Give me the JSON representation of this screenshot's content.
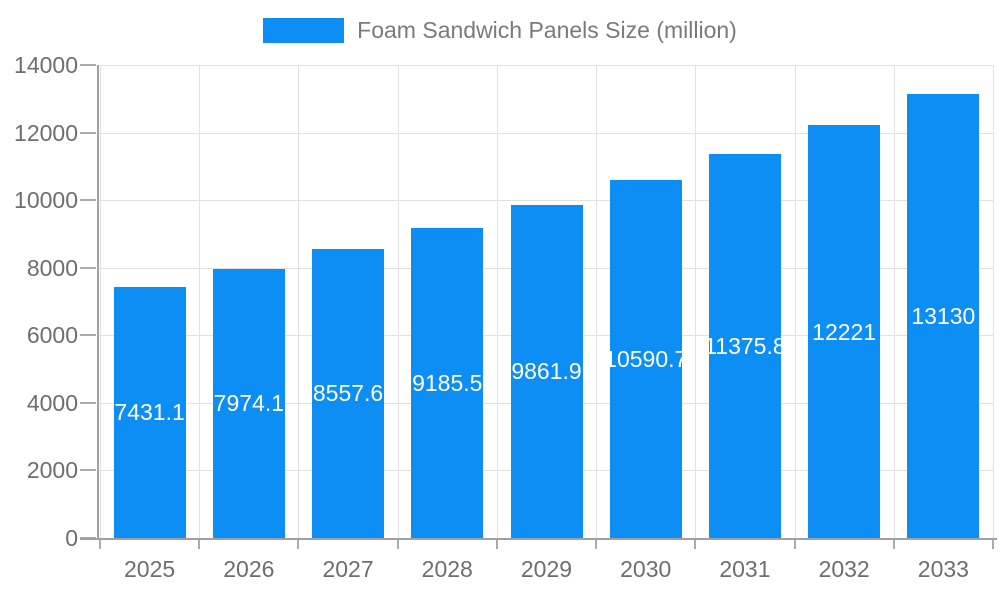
{
  "chart_data": {
    "type": "bar",
    "title": "Foam Sandwich Panels Size (million)",
    "categories": [
      "2025",
      "2026",
      "2027",
      "2028",
      "2029",
      "2030",
      "2031",
      "2032",
      "2033"
    ],
    "series": [
      {
        "name": "Foam Sandwich Panels Size (million)",
        "values": [
          7431.1,
          7974.1,
          8557.6,
          9185.5,
          9861.9,
          10590.7,
          11375.8,
          12221,
          13130
        ],
        "value_labels": [
          "7431.1",
          "7974.1",
          "8557.6",
          "9185.5",
          "9861.9",
          "10590.7",
          "11375.8",
          "12221",
          "13130"
        ]
      }
    ],
    "xlabel": "",
    "ylabel": "",
    "ylim": [
      0,
      14000
    ],
    "yticks": [
      0,
      2000,
      4000,
      6000,
      8000,
      10000,
      12000,
      14000
    ],
    "ytick_labels": [
      "0",
      "2000",
      "4000",
      "6000",
      "8000",
      "10000",
      "12000",
      "14000"
    ],
    "grid": true,
    "legend_position": "top",
    "colors": {
      "bar": "#0d8ef4",
      "value_label": "#ffffff",
      "axis_line": "#a0a0a0",
      "tick_mark": "#ababab",
      "gridline": "#e1e1e1",
      "tick_label": "#6e6e6e",
      "title": "#7a7a7a",
      "background": "#ffffff"
    }
  }
}
